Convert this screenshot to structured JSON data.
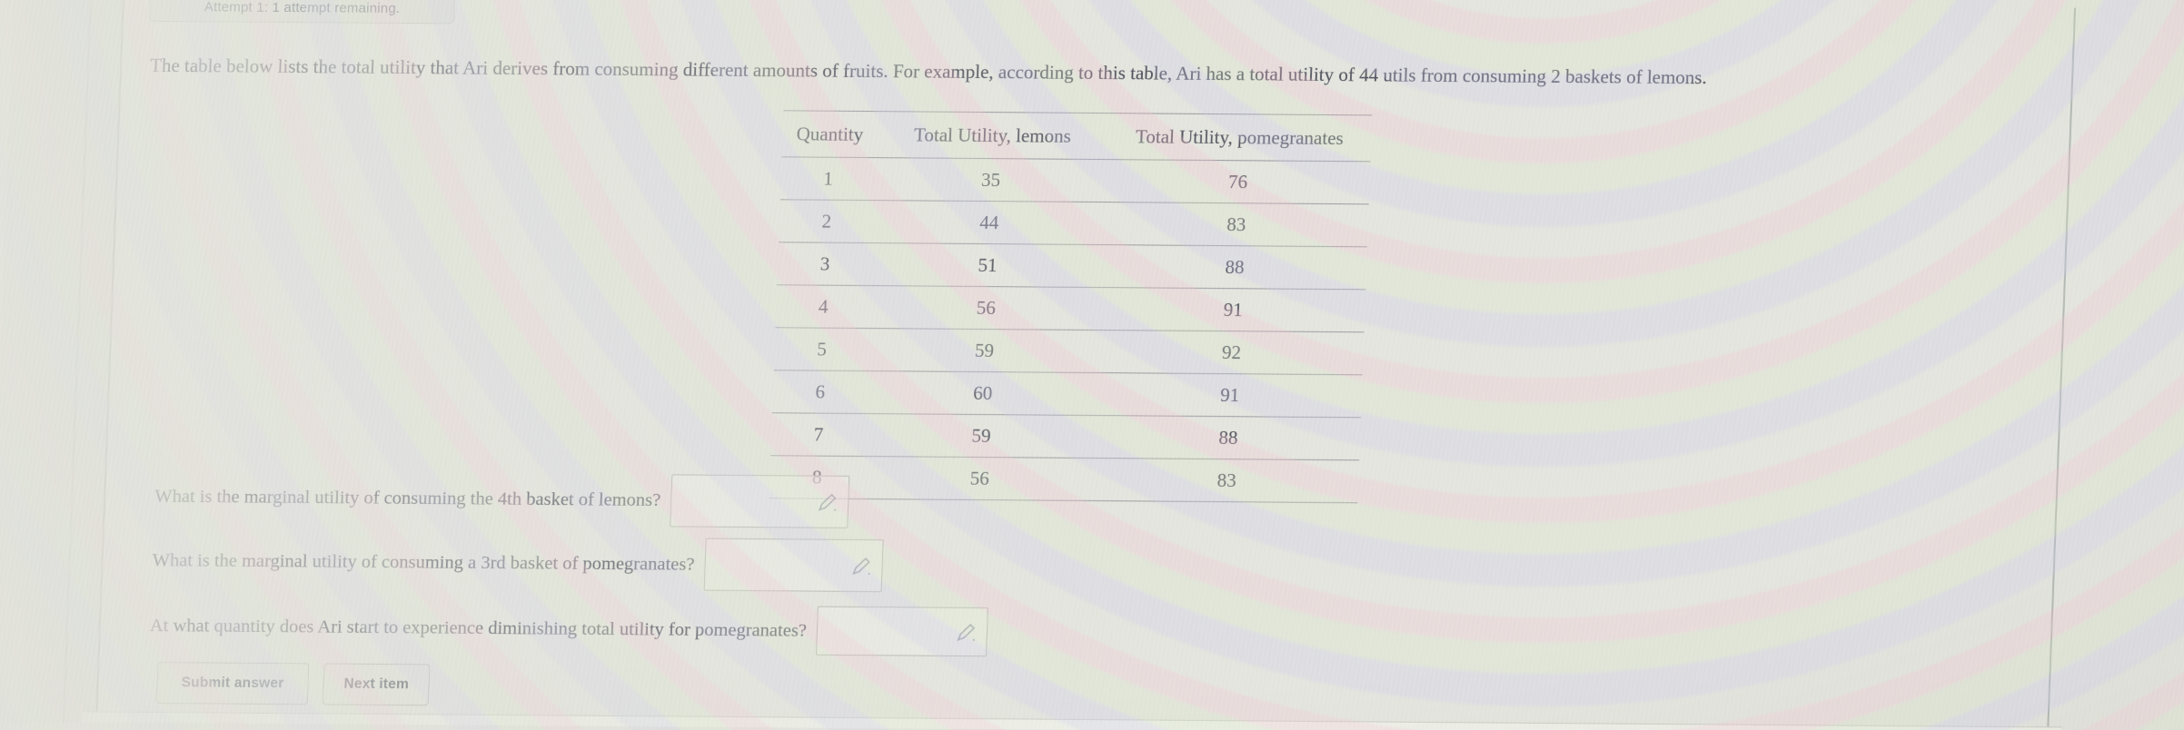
{
  "attempt_banner": {
    "label": "Attempt 1: 1 attempt remaining."
  },
  "intro": {
    "text": "The table below lists the total utility that Ari derives from consuming different amounts of fruits. For example, according to this table, Ari has a total utility of 44 utils from consuming 2 baskets of lemons."
  },
  "utility_table": {
    "columns": [
      "Quantity",
      "Total Utility, lemons",
      "Total Utility, pomegranates"
    ],
    "rows": [
      {
        "quantity": "1",
        "lemons": "35",
        "pomegranates": "76"
      },
      {
        "quantity": "2",
        "lemons": "44",
        "pomegranates": "83"
      },
      {
        "quantity": "3",
        "lemons": "51",
        "pomegranates": "88"
      },
      {
        "quantity": "4",
        "lemons": "56",
        "pomegranates": "91"
      },
      {
        "quantity": "5",
        "lemons": "59",
        "pomegranates": "92"
      },
      {
        "quantity": "6",
        "lemons": "60",
        "pomegranates": "91"
      },
      {
        "quantity": "7",
        "lemons": "59",
        "pomegranates": "88"
      },
      {
        "quantity": "8",
        "lemons": "56",
        "pomegranates": "83"
      }
    ]
  },
  "questions": [
    {
      "text": "What is the marginal utility of consuming the 4th basket of lemons?",
      "answer_value": ""
    },
    {
      "text": "What is the marginal utility of consuming a 3rd basket of pomegranates?",
      "answer_value": ""
    },
    {
      "text": "At what quantity does Ari start to experience diminishing total utility for pomegranates?",
      "answer_value": ""
    }
  ],
  "actions": [
    {
      "label": "Submit answer"
    },
    {
      "label": "Next item"
    }
  ],
  "icons": {
    "edit": "pencil-icon"
  },
  "colors": {
    "page_bg": "#e4e5de",
    "text": "#4e505b",
    "table_line": "#94949a",
    "border": "#b3b6ad",
    "badge_bg": "#dcdfd6"
  }
}
